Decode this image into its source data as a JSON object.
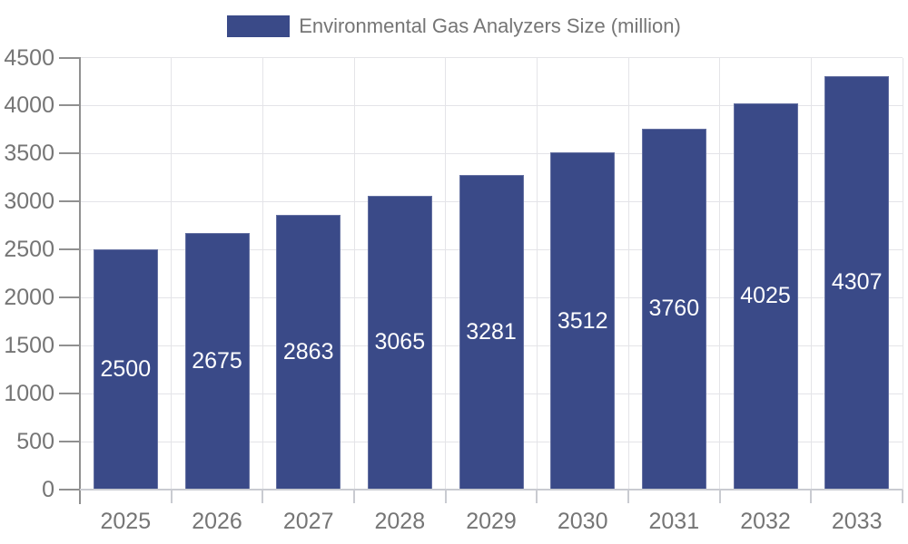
{
  "chart_data": {
    "type": "bar",
    "title": "",
    "xlabel": "",
    "ylabel": "",
    "categories": [
      "2025",
      "2026",
      "2027",
      "2028",
      "2029",
      "2030",
      "2031",
      "2032",
      "2033"
    ],
    "series": [
      {
        "name": "Environmental Gas Analyzers Size (million)",
        "values": [
          2500,
          2675,
          2863,
          3065,
          3281,
          3512,
          3760,
          4025,
          4307
        ]
      }
    ],
    "ylim": [
      0,
      4500
    ],
    "yticks": [
      0,
      500,
      1000,
      1500,
      2000,
      2500,
      3000,
      3500,
      4000,
      4500
    ],
    "grid": true,
    "legend_position": "top-center",
    "bar_value_labels_shown": true,
    "colors": {
      "bar": "#3A4A88",
      "bar_label": "#FFFFFF",
      "axis_text": "#757575",
      "grid_line": "#E4E4E8",
      "y_axis_line": "#909090",
      "x_axis_line": "#C9CBD1"
    }
  }
}
